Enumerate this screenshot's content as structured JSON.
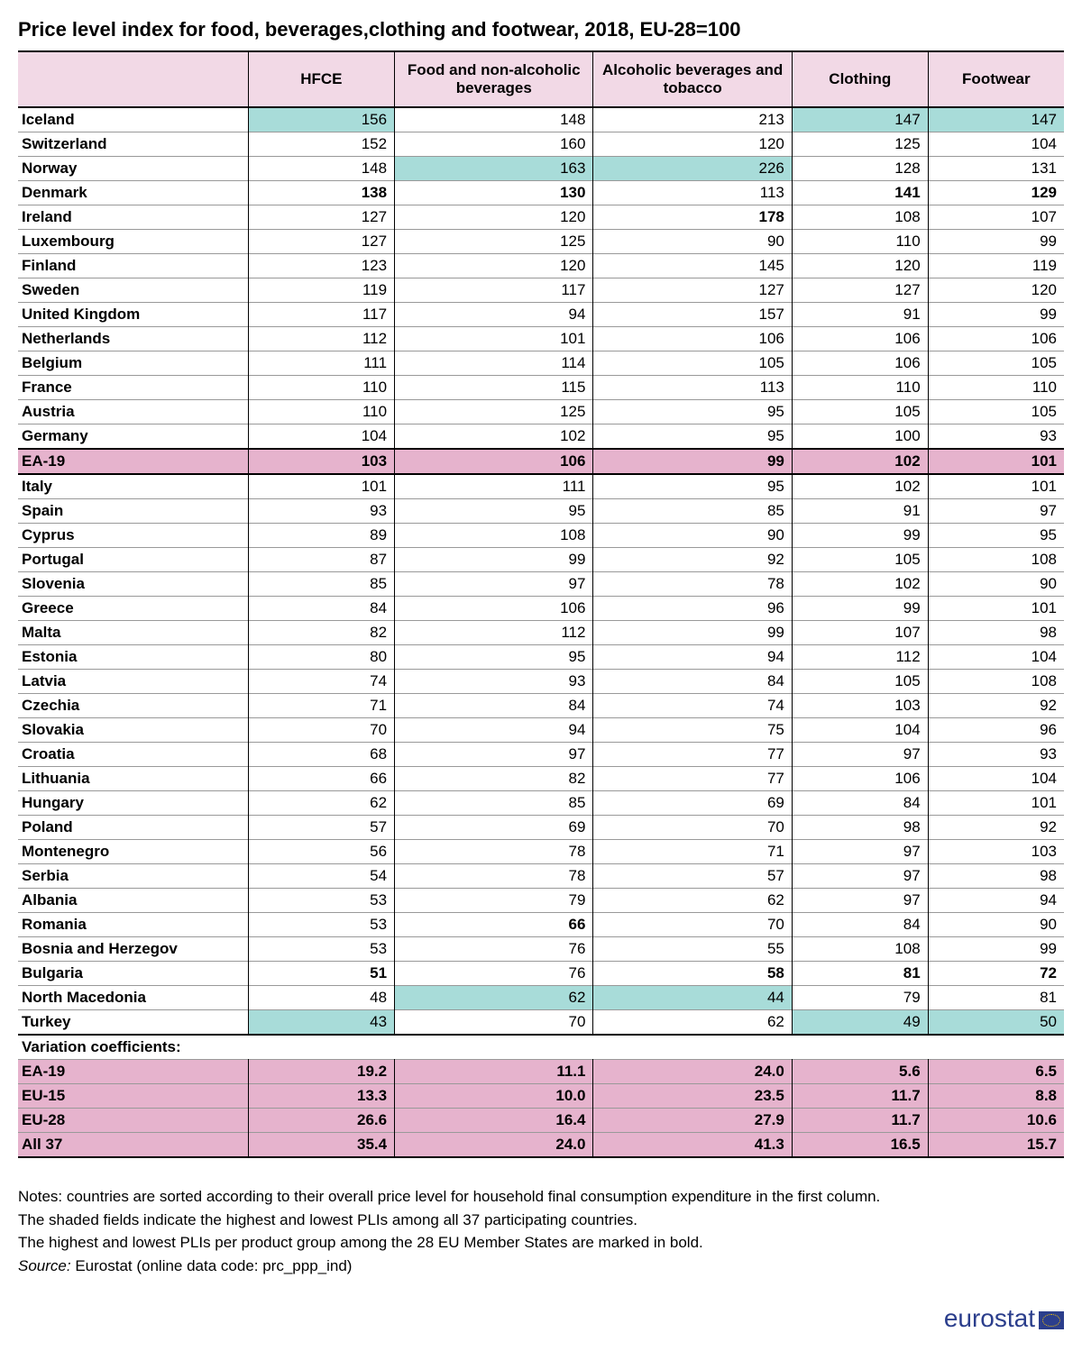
{
  "title": "Price level index for food, beverages,clothing and footwear, 2018, EU-28=100",
  "columns": [
    "",
    "HFCE",
    "Food and non-alcoholic beverages",
    "Alcoholic beverages and tobacco",
    "Clothing",
    "Footwear"
  ],
  "rows": [
    {
      "c": "Iceland",
      "v": [
        156,
        148,
        213,
        147,
        147
      ],
      "hi": [
        0,
        3,
        4
      ]
    },
    {
      "c": "Switzerland",
      "v": [
        152,
        160,
        120,
        125,
        104
      ]
    },
    {
      "c": "Norway",
      "v": [
        148,
        163,
        226,
        128,
        131
      ],
      "hi": [
        1,
        2
      ]
    },
    {
      "c": "Denmark",
      "v": [
        138,
        130,
        113,
        141,
        129
      ],
      "b": [
        0,
        1,
        3,
        4
      ]
    },
    {
      "c": "Ireland",
      "v": [
        127,
        120,
        178,
        108,
        107
      ],
      "b": [
        2
      ]
    },
    {
      "c": "Luxembourg",
      "v": [
        127,
        125,
        90,
        110,
        99
      ]
    },
    {
      "c": "Finland",
      "v": [
        123,
        120,
        145,
        120,
        119
      ]
    },
    {
      "c": "Sweden",
      "v": [
        119,
        117,
        127,
        127,
        120
      ]
    },
    {
      "c": "United Kingdom",
      "v": [
        117,
        94,
        157,
        91,
        99
      ]
    },
    {
      "c": "Netherlands",
      "v": [
        112,
        101,
        106,
        106,
        106
      ]
    },
    {
      "c": "Belgium",
      "v": [
        111,
        114,
        105,
        106,
        105
      ]
    },
    {
      "c": "France",
      "v": [
        110,
        115,
        113,
        110,
        110
      ]
    },
    {
      "c": "Austria",
      "v": [
        110,
        125,
        95,
        105,
        105
      ]
    },
    {
      "c": "Germany",
      "v": [
        104,
        102,
        95,
        100,
        93
      ]
    },
    {
      "c": "EA-19",
      "v": [
        103,
        106,
        99,
        102,
        101
      ],
      "ea": true
    },
    {
      "c": "Italy",
      "v": [
        101,
        111,
        95,
        102,
        101
      ]
    },
    {
      "c": "Spain",
      "v": [
        93,
        95,
        85,
        91,
        97
      ]
    },
    {
      "c": "Cyprus",
      "v": [
        89,
        108,
        90,
        99,
        95
      ]
    },
    {
      "c": "Portugal",
      "v": [
        87,
        99,
        92,
        105,
        108
      ]
    },
    {
      "c": "Slovenia",
      "v": [
        85,
        97,
        78,
        102,
        90
      ]
    },
    {
      "c": "Greece",
      "v": [
        84,
        106,
        96,
        99,
        101
      ]
    },
    {
      "c": "Malta",
      "v": [
        82,
        112,
        99,
        107,
        98
      ]
    },
    {
      "c": "Estonia",
      "v": [
        80,
        95,
        94,
        112,
        104
      ]
    },
    {
      "c": "Latvia",
      "v": [
        74,
        93,
        84,
        105,
        108
      ]
    },
    {
      "c": "Czechia",
      "v": [
        71,
        84,
        74,
        103,
        92
      ]
    },
    {
      "c": "Slovakia",
      "v": [
        70,
        94,
        75,
        104,
        96
      ]
    },
    {
      "c": "Croatia",
      "v": [
        68,
        97,
        77,
        97,
        93
      ]
    },
    {
      "c": "Lithuania",
      "v": [
        66,
        82,
        77,
        106,
        104
      ]
    },
    {
      "c": "Hungary",
      "v": [
        62,
        85,
        69,
        84,
        101
      ]
    },
    {
      "c": "Poland",
      "v": [
        57,
        69,
        70,
        98,
        92
      ]
    },
    {
      "c": "Montenegro",
      "v": [
        56,
        78,
        71,
        97,
        103
      ]
    },
    {
      "c": "Serbia",
      "v": [
        54,
        78,
        57,
        97,
        98
      ]
    },
    {
      "c": "Albania",
      "v": [
        53,
        79,
        62,
        97,
        94
      ]
    },
    {
      "c": "Romania",
      "v": [
        53,
        66,
        70,
        84,
        90
      ],
      "b": [
        1
      ]
    },
    {
      "c": "Bosnia and Herzegov",
      "v": [
        53,
        76,
        55,
        108,
        99
      ]
    },
    {
      "c": "Bulgaria",
      "v": [
        51,
        76,
        58,
        81,
        72
      ],
      "b": [
        0,
        2,
        3,
        4
      ]
    },
    {
      "c": "North Macedonia",
      "v": [
        48,
        62,
        44,
        79,
        81
      ],
      "lo": [
        1,
        2
      ]
    },
    {
      "c": "Turkey",
      "v": [
        43,
        70,
        62,
        49,
        50
      ],
      "lo": [
        0,
        3,
        4
      ]
    }
  ],
  "vc_header": "Variation coefficients:",
  "vc_rows": [
    {
      "c": "EA-19",
      "v": [
        19.2,
        11.1,
        24.0,
        5.6,
        6.5
      ]
    },
    {
      "c": "EU-15",
      "v": [
        13.3,
        10.0,
        23.5,
        11.7,
        8.8
      ]
    },
    {
      "c": "EU-28",
      "v": [
        26.6,
        16.4,
        27.9,
        11.7,
        10.6
      ]
    },
    {
      "c": "All 37",
      "v": [
        35.4,
        24.0,
        41.3,
        16.5,
        15.7
      ]
    }
  ],
  "notes": [
    "Notes: countries are sorted according to their overall price level for household final consumption expenditure in the first column.",
    "The shaded fields indicate the highest and lowest PLIs among all 37 participating countries.",
    "The highest and lowest PLIs per product group among the 28 EU Member States are marked in bold."
  ],
  "source_label": "Source:",
  "source_text": " Eurostat (online data code: prc_ppp_ind)",
  "logo_text": "eurostat",
  "colors": {
    "header_bg": "#f2d9e6",
    "highlight_bg": "#a8dcd9",
    "ea_bg": "#e6b3cd",
    "border": "#000000",
    "row_border": "#999999",
    "logo": "#2b3e8c"
  },
  "fonts": {
    "title_size": 22,
    "body_size": 17,
    "notes_size": 17,
    "logo_size": 28
  }
}
